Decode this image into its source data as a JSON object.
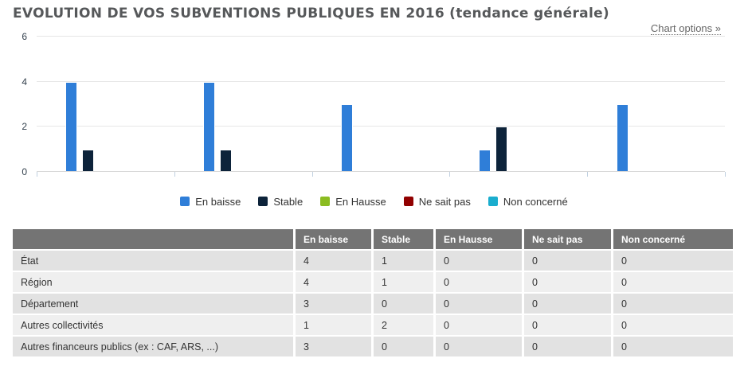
{
  "header": {
    "title": "EVOLUTION DE VOS SUBVENTIONS PUBLIQUES EN 2016 (tendance générale)",
    "chart_options_label": "Chart options »"
  },
  "chart_data": {
    "type": "bar",
    "title": "EVOLUTION DE VOS SUBVENTIONS PUBLIQUES EN 2016 (tendance générale)",
    "categories": [
      "État",
      "Région",
      "Département",
      "Autres collectivités",
      "Autres financeurs publics (ex : CAF, ARS, ...)"
    ],
    "series": [
      {
        "name": "En baisse",
        "color": "#2f7ed8",
        "values": [
          4,
          4,
          3,
          1,
          3
        ]
      },
      {
        "name": "Stable",
        "color": "#0d233a",
        "values": [
          1,
          1,
          0,
          2,
          0
        ]
      },
      {
        "name": "En Hausse",
        "color": "#8bbc21",
        "values": [
          0,
          0,
          0,
          0,
          0
        ]
      },
      {
        "name": "Ne sait pas",
        "color": "#910000",
        "values": [
          0,
          0,
          0,
          0,
          0
        ]
      },
      {
        "name": "Non concerné",
        "color": "#1aadce",
        "values": [
          0,
          0,
          0,
          0,
          0
        ]
      }
    ],
    "xlabel": "",
    "ylabel": "",
    "ylim": [
      0,
      6
    ],
    "yticks": [
      0,
      2,
      4,
      6
    ],
    "grid": true,
    "legend_position": "bottom",
    "x_tick_labels_visible": false
  },
  "table": {
    "column_headers": [
      "",
      "En baisse",
      "Stable",
      "En Hausse",
      "Ne sait pas",
      "Non concerné"
    ],
    "rows": [
      {
        "label": "État",
        "values": [
          4,
          1,
          0,
          0,
          0
        ]
      },
      {
        "label": "Région",
        "values": [
          4,
          1,
          0,
          0,
          0
        ]
      },
      {
        "label": "Département",
        "values": [
          3,
          0,
          0,
          0,
          0
        ]
      },
      {
        "label": "Autres collectivités",
        "values": [
          1,
          2,
          0,
          0,
          0
        ]
      },
      {
        "label": "Autres financeurs publics (ex : CAF, ARS, ...)",
        "values": [
          3,
          0,
          0,
          0,
          0
        ]
      }
    ]
  },
  "colors": {
    "title_text": "#56585a",
    "link_text": "#666666",
    "gridline": "#e6e6e6",
    "axis_line": "#d8d8d8",
    "axis_tick": "#c0d0e0",
    "table_header_bg": "#747474",
    "table_row_odd_bg": "#e2e2e2",
    "table_row_even_bg": "#efefef"
  }
}
